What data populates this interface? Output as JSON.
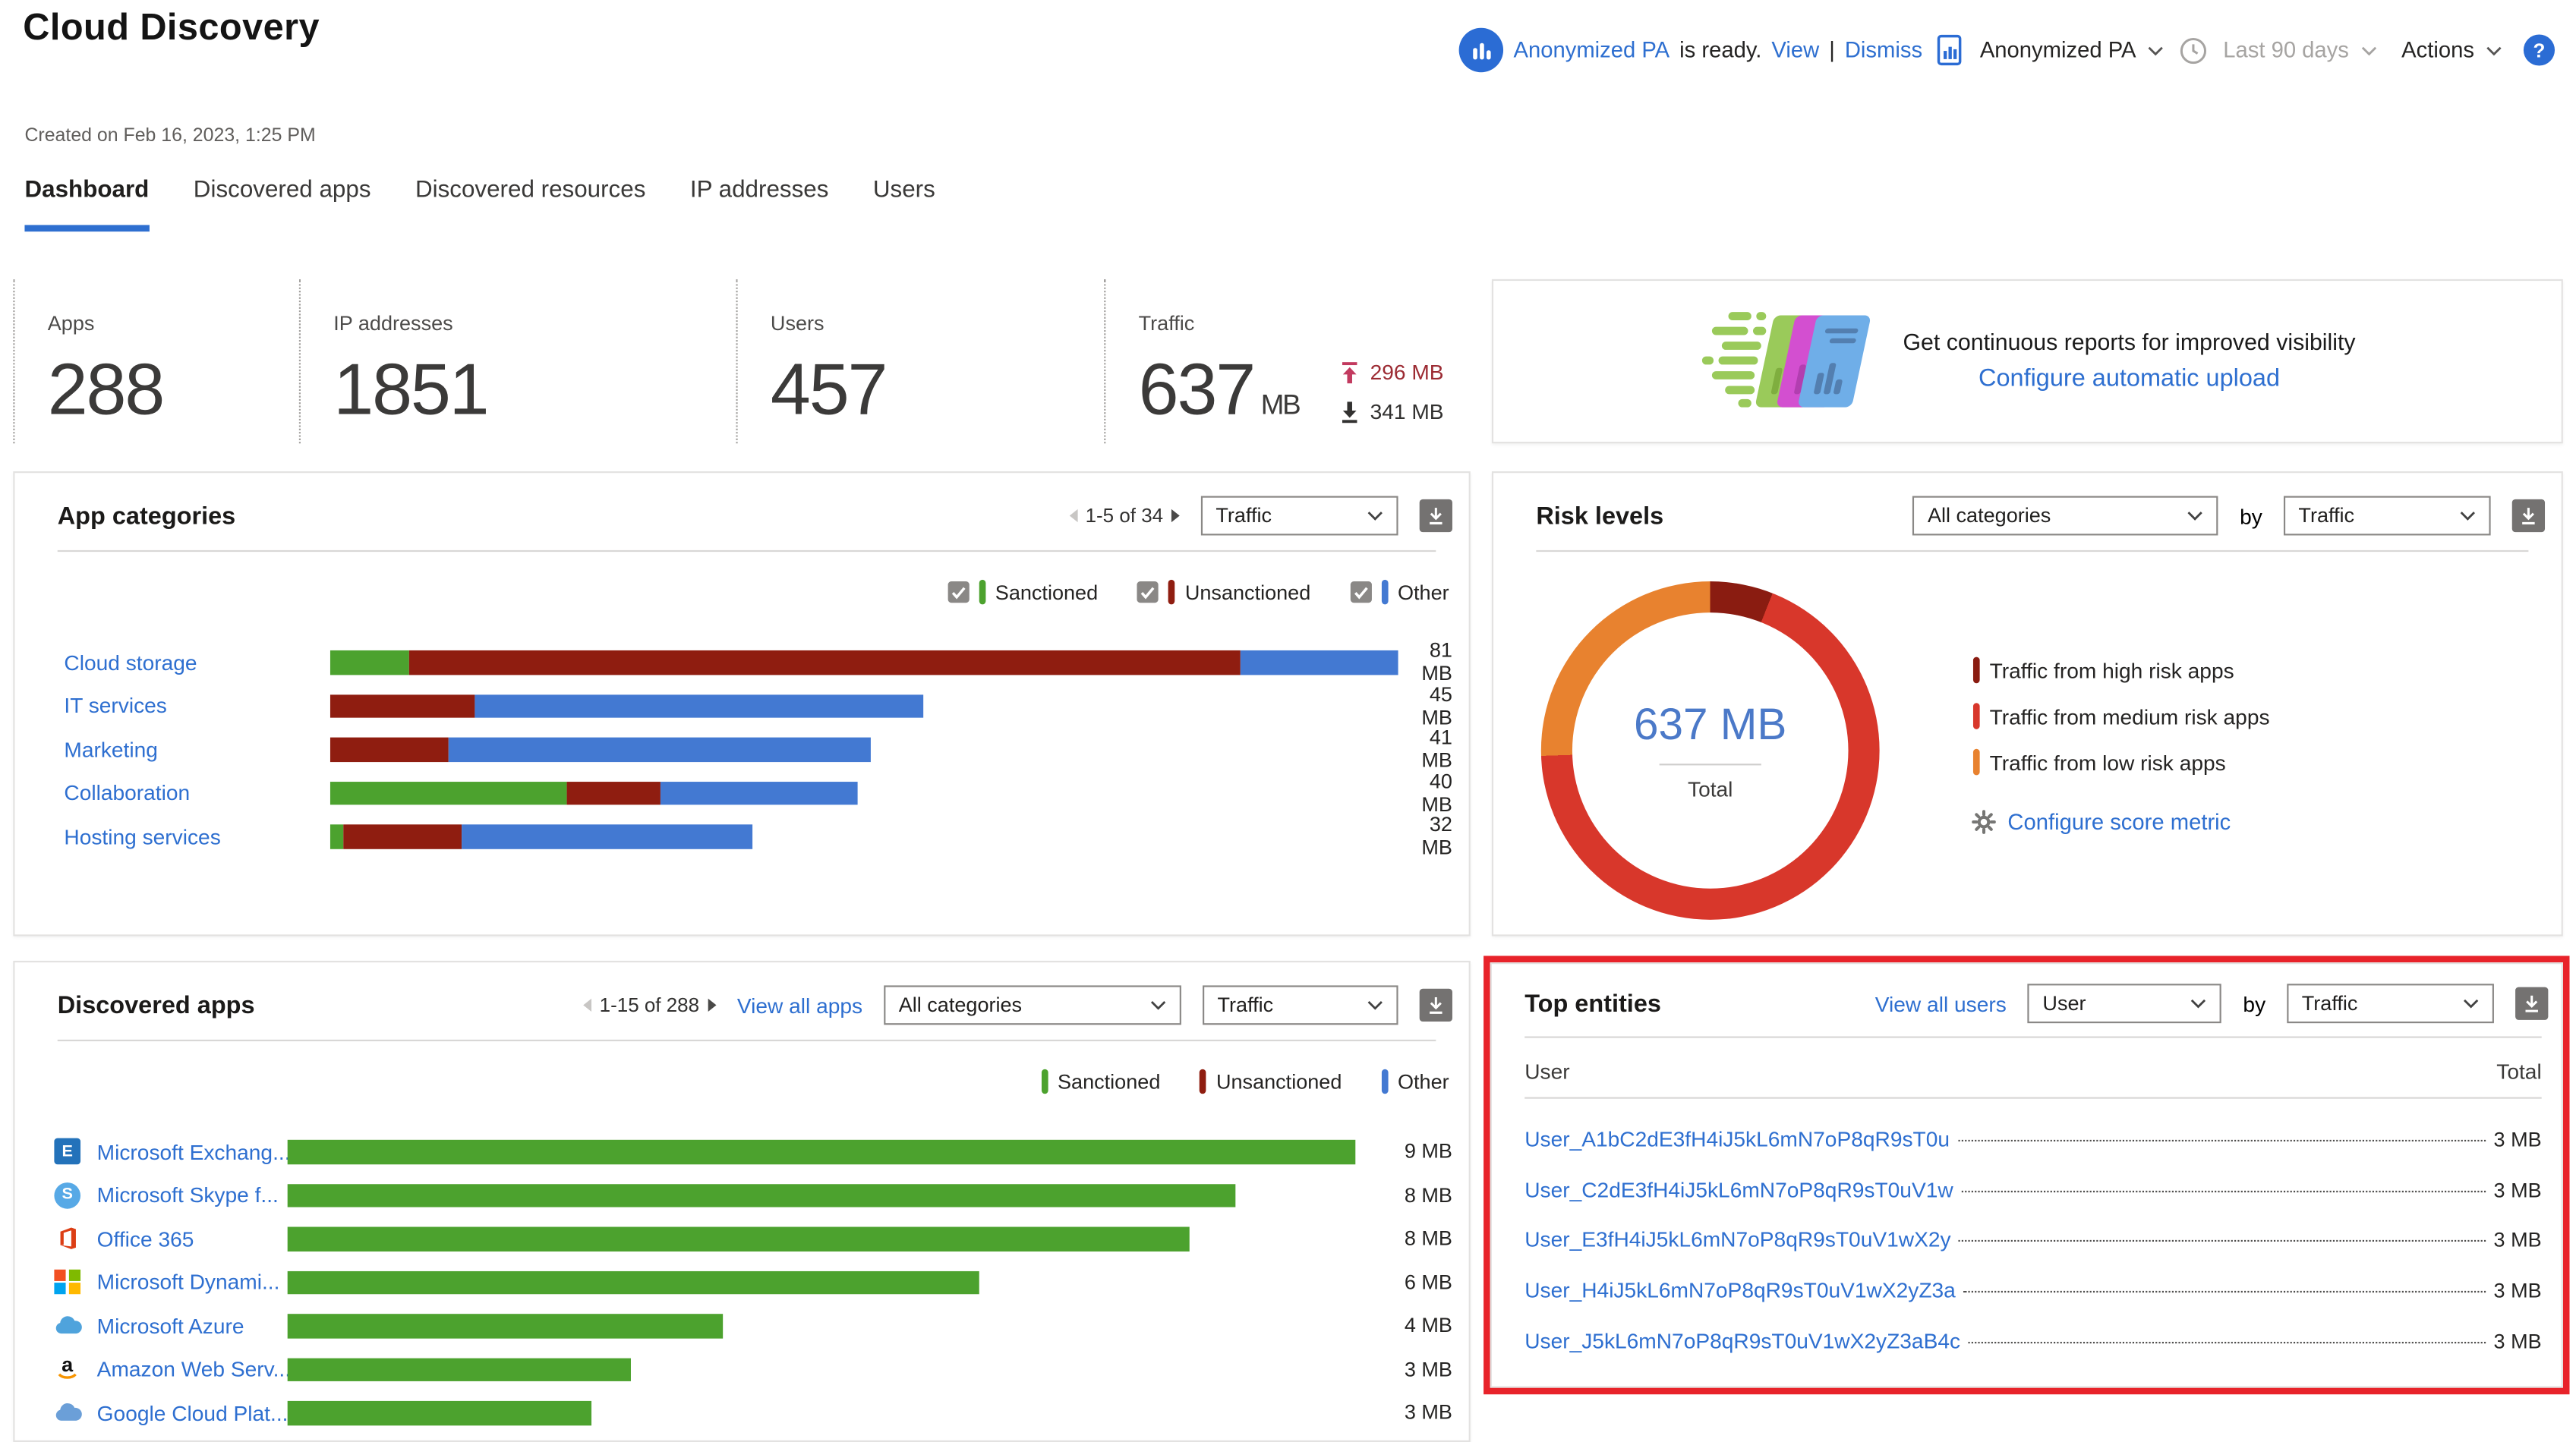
{
  "page": {
    "title": "Cloud Discovery",
    "created": "Created on Feb 16, 2023, 1:25 PM"
  },
  "topbar": {
    "notification": {
      "report_name": "Anonymized PA",
      "status_text": "is ready.",
      "view_label": "View",
      "separator": "|",
      "dismiss_label": "Dismiss"
    },
    "report_dropdown": {
      "value": "Anonymized PA"
    },
    "time_range": {
      "value": "Last 90 days"
    },
    "actions_label": "Actions",
    "help_label": "?"
  },
  "tabs": [
    {
      "label": "Dashboard",
      "active": true
    },
    {
      "label": "Discovered apps",
      "active": false
    },
    {
      "label": "Discovered resources",
      "active": false
    },
    {
      "label": "IP addresses",
      "active": false
    },
    {
      "label": "Users",
      "active": false
    }
  ],
  "stats": {
    "apps": {
      "label": "Apps",
      "value": "288"
    },
    "ip": {
      "label": "IP addresses",
      "value": "1851"
    },
    "users": {
      "label": "Users",
      "value": "457"
    },
    "traffic": {
      "label": "Traffic",
      "value": "637",
      "unit": "MB",
      "upload": "296 MB",
      "download": "341 MB"
    }
  },
  "banner": {
    "text": "Get continuous reports for improved visibility",
    "link_label": "Configure automatic upload"
  },
  "app_categories": {
    "title": "App categories",
    "pagination": "1-5 of 34",
    "sort_value": "Traffic",
    "legend": [
      {
        "label": "Sanctioned",
        "color": "#4ca22e"
      },
      {
        "label": "Unsanctioned",
        "color": "#8f1d10"
      },
      {
        "label": "Other",
        "color": "#4379d2"
      }
    ]
  },
  "risk_levels": {
    "title": "Risk levels",
    "category_value": "All categories",
    "by_label": "by",
    "sort_value": "Traffic",
    "configure_label": "Configure score metric"
  },
  "discovered_apps": {
    "title": "Discovered apps",
    "pagination": "1-15 of 288",
    "view_all_label": "View all apps",
    "category_value": "All categories",
    "sort_value": "Traffic"
  },
  "top_entities": {
    "title": "Top entities",
    "view_all_label": "View all users",
    "entity_value": "User",
    "by_label": "by",
    "sort_value": "Traffic",
    "columns": {
      "user": "User",
      "total": "Total"
    },
    "rows": [
      {
        "user": "User_A1bC2dE3fH4iJ5kL6mN7oP8qR9sT0u",
        "total": "3 MB"
      },
      {
        "user": "User_C2dE3fH4iJ5kL6mN7oP8qR9sT0uV1w",
        "total": "3 MB"
      },
      {
        "user": "User_E3fH4iJ5kL6mN7oP8qR9sT0uV1wX2y",
        "total": "3 MB"
      },
      {
        "user": "User_H4iJ5kL6mN7oP8qR9sT0uV1wX2yZ3a",
        "total": "3 MB"
      },
      {
        "user": "User_J5kL6mN7oP8qR9sT0uV1wX2yZ3aB4c",
        "total": "3 MB"
      }
    ]
  },
  "chart_data": [
    {
      "type": "bar",
      "title": "App categories",
      "orientation": "horizontal",
      "stacked": true,
      "categories": [
        "Cloud storage",
        "IT services",
        "Marketing",
        "Collaboration",
        "Hosting services"
      ],
      "series": [
        {
          "name": "Sanctioned",
          "color": "#4ca22e",
          "values": [
            6,
            0,
            0,
            18,
            1
          ]
        },
        {
          "name": "Unsanctioned",
          "color": "#8f1d10",
          "values": [
            63,
            11,
            9,
            7,
            9
          ]
        },
        {
          "name": "Other",
          "color": "#4379d2",
          "values": [
            12,
            34,
            32,
            15,
            22
          ]
        }
      ],
      "total_labels": [
        "81 MB",
        "45 MB",
        "41 MB",
        "40 MB",
        "32 MB"
      ],
      "xlabel": "",
      "ylabel": "",
      "xlim": [
        0,
        81
      ],
      "unit": "MB",
      "grid": false
    },
    {
      "type": "pie",
      "title": "Risk levels",
      "donut": true,
      "slices": [
        {
          "label": "Traffic from high risk apps",
          "color": "#8a1c11",
          "percent": 6
        },
        {
          "label": "Traffic from medium risk apps",
          "color": "#d8372b",
          "percent": 68.5
        },
        {
          "label": "Traffic from low risk apps",
          "color": "#e8822f",
          "percent": 25.5
        }
      ],
      "center_value": "637 MB",
      "center_label": "Total",
      "legend_position": "right"
    },
    {
      "type": "bar",
      "title": "Discovered apps",
      "orientation": "horizontal",
      "categories": [
        "Microsoft Exchang...",
        "Microsoft Skype f...",
        "Office 365",
        "Microsoft Dynami...",
        "Microsoft Azure",
        "Amazon Web Serv...",
        "Google Cloud Plat..."
      ],
      "values": [
        9,
        8,
        8,
        6,
        4,
        3,
        3
      ],
      "value_labels": [
        "9 MB",
        "8 MB",
        "8 MB",
        "6 MB",
        "4 MB",
        "3 MB",
        "3 MB"
      ],
      "bar_fractions": [
        1,
        0.888,
        0.845,
        0.647,
        0.407,
        0.322,
        0.284
      ],
      "icons": [
        "exchange-icon",
        "skype-icon",
        "office365-icon",
        "dynamics-icon",
        "azure-icon",
        "aws-icon",
        "gcp-icon"
      ],
      "color": "#4ca22e",
      "unit": "MB",
      "grid": false
    }
  ]
}
